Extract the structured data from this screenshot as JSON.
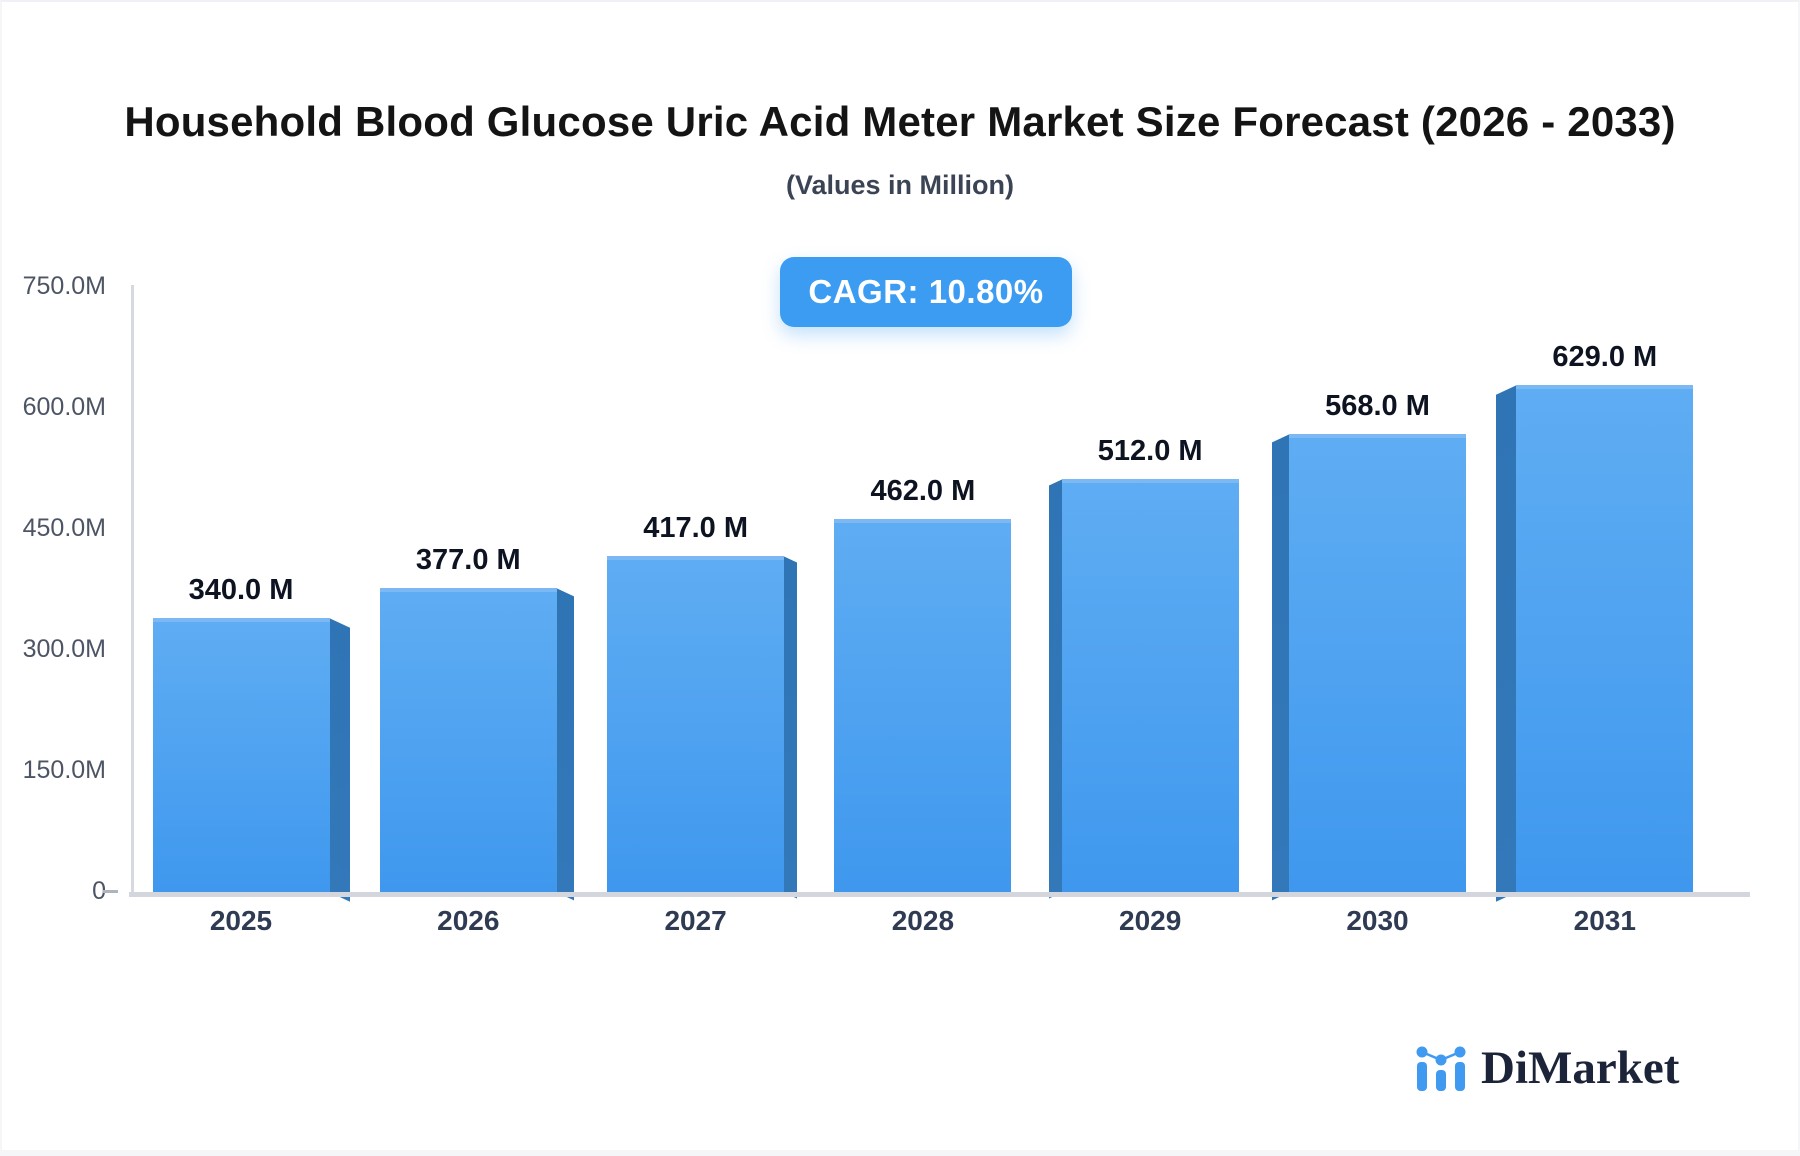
{
  "title": "Household Blood Glucose Uric Acid Meter Market Size Forecast (2026 - 2033)",
  "subtitle": "(Values in Million)",
  "cagr_badge": {
    "label": "CAGR: 10.80%",
    "bg_color": "#3b9cf2",
    "text_color": "#ffffff"
  },
  "logo": {
    "text": "DiMarket",
    "icon": "bar-chart-logo-icon",
    "icon_color": "#3f9af0",
    "text_color": "#1b2438"
  },
  "chart_data": {
    "type": "bar",
    "title": "Household Blood Glucose Uric Acid Meter Market Size Forecast (2026 - 2033)",
    "subtitle": "(Values in Million)",
    "categories": [
      "2025",
      "2026",
      "2027",
      "2028",
      "2029",
      "2030",
      "2031"
    ],
    "values": [
      340,
      377,
      417,
      462,
      512,
      568,
      629
    ],
    "value_labels": [
      "340.0 M",
      "377.0 M",
      "417.0 M",
      "462.0 M",
      "512.0 M",
      "568.0 M",
      "629.0 M"
    ],
    "unit": "Million",
    "ylim": [
      0,
      750
    ],
    "y_ticks": [
      {
        "label": "0",
        "value": 0
      },
      {
        "label": "150.0M",
        "value": 150
      },
      {
        "label": "300.0M",
        "value": 300
      },
      {
        "label": "450.0M",
        "value": 450
      },
      {
        "label": "600.0M",
        "value": 600
      },
      {
        "label": "750.0M",
        "value": 750
      }
    ],
    "grid": false,
    "legend": false,
    "bar_style_3d": true,
    "colors": {
      "bar_face_top": "#5fadf3",
      "bar_face_bottom": "#3f98ee",
      "bar_bevel": "#7cb9f4",
      "bar_side": "#2f74b4",
      "axis_line": "#d6d9e0",
      "baseline": "#d3d6dd",
      "value_label": "#0d1320",
      "x_label": "#2f3b52",
      "y_label": "#4d5565"
    }
  }
}
